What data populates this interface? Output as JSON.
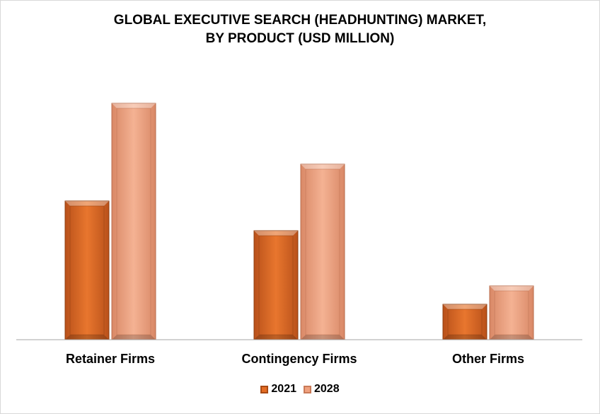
{
  "colors": {
    "series_2021": "#e46c24",
    "series_2028": "#f0a17e",
    "axis": "#a6a6a6"
  },
  "chart_data": {
    "type": "bar",
    "title": "GLOBAL EXECUTIVE SEARCH (HEADHUNTING) MARKET, BY PRODUCT (USD MILLION)",
    "title_lines": [
      "GLOBAL EXECUTIVE SEARCH (HEADHUNTING) MARKET,",
      "BY PRODUCT (USD MILLION)"
    ],
    "categories": [
      "Retainer Firms",
      "Contingency Firms",
      "Other Firms"
    ],
    "series": [
      {
        "name": "2021",
        "values": [
          196,
          154,
          50
        ]
      },
      {
        "name": "2028",
        "values": [
          334,
          248,
          76
        ]
      }
    ],
    "ylim": [
      0,
      350
    ],
    "grid": false,
    "legend_position": "bottom",
    "xlabel": "",
    "ylabel": ""
  }
}
